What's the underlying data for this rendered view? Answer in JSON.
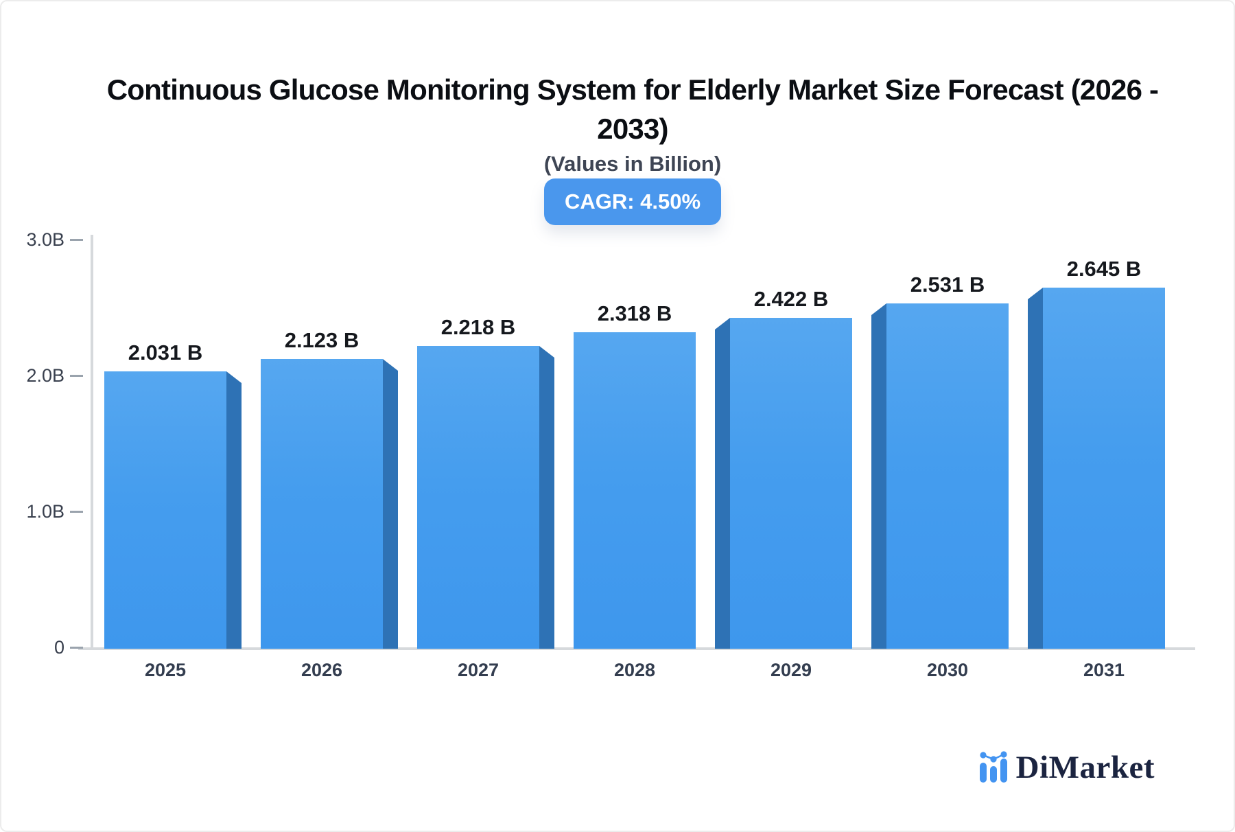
{
  "title_lines": [
    "Continuous Glucose Monitoring System for Elderly Market Size Forecast (2026 -",
    "2033)"
  ],
  "subtitle": "(Values in Billion)",
  "badge": {
    "label": "CAGR: 4.50%"
  },
  "branding": {
    "name": "DiMarket",
    "icon": "dimarket-bar-chart-logo"
  },
  "colors": {
    "accent": "#4a97ed",
    "bar_front_top": "#56a7f0",
    "bar_front_bottom": "#3e97ed",
    "bar_side": "#2e72b5",
    "axis": "#d6d9dc",
    "tick": "#9aa3ad",
    "title_text": "#0b0e13",
    "subtitle_text": "#3e4554",
    "label_text": "#15181d",
    "logo_navy": "#1b2440",
    "logo_blue": "#4394f1"
  },
  "chart_data": {
    "type": "bar",
    "title": "Continuous Glucose Monitoring System for Elderly Market Size Forecast (2026 - 2033)",
    "subtitle": "(Values in Billion)",
    "annotation": "CAGR: 4.50%",
    "categories": [
      "2025",
      "2026",
      "2027",
      "2028",
      "2029",
      "2030",
      "2031"
    ],
    "values": [
      2.031,
      2.123,
      2.218,
      2.318,
      2.422,
      2.531,
      2.645
    ],
    "bar_labels": [
      "2.031 B",
      "2.123 B",
      "2.218 B",
      "2.318 B",
      "2.422 B",
      "2.531 B",
      "2.645 B"
    ],
    "unit": "Billion",
    "yticks": [
      {
        "value": 0,
        "label": "0"
      },
      {
        "value": 1,
        "label": "1.0B"
      },
      {
        "value": 2,
        "label": "2.0B"
      },
      {
        "value": 3,
        "label": "3.0B"
      }
    ],
    "ylim": [
      0,
      3.05
    ],
    "grid": false,
    "legend": false,
    "style": "3d-bars, perspective toward center bar"
  }
}
